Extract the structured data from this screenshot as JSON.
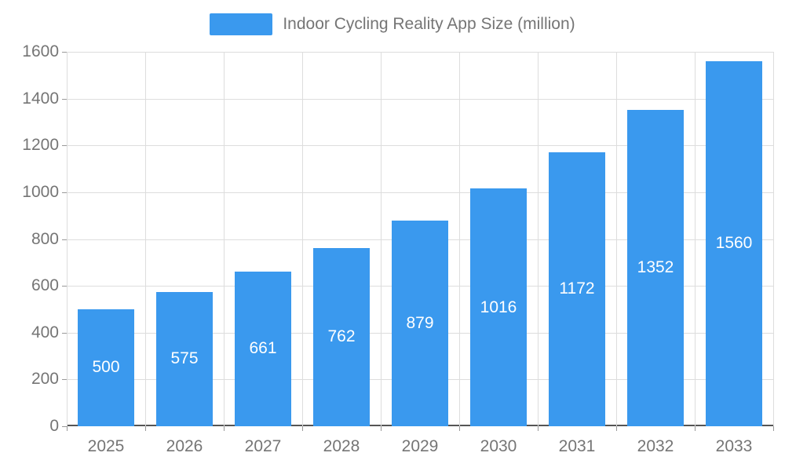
{
  "chart_data": {
    "type": "bar",
    "title": "Indoor Cycling Reality App Size (million)",
    "categories": [
      "2025",
      "2026",
      "2027",
      "2028",
      "2029",
      "2030",
      "2031",
      "2032",
      "2033"
    ],
    "values": [
      500,
      575,
      661,
      762,
      879,
      1016,
      1172,
      1352,
      1560
    ],
    "xlabel": "",
    "ylabel": "",
    "ylim": [
      0,
      1600
    ],
    "yticks": [
      0,
      200,
      400,
      600,
      800,
      1000,
      1200,
      1400,
      1600
    ],
    "grid": true,
    "legend_position": "top-center",
    "bar_color": "#3A99EE",
    "value_label_color": "#ffffff",
    "axis_text_color": "#757575",
    "grid_color": "#dddddd",
    "axis_line_color": "#555555"
  }
}
